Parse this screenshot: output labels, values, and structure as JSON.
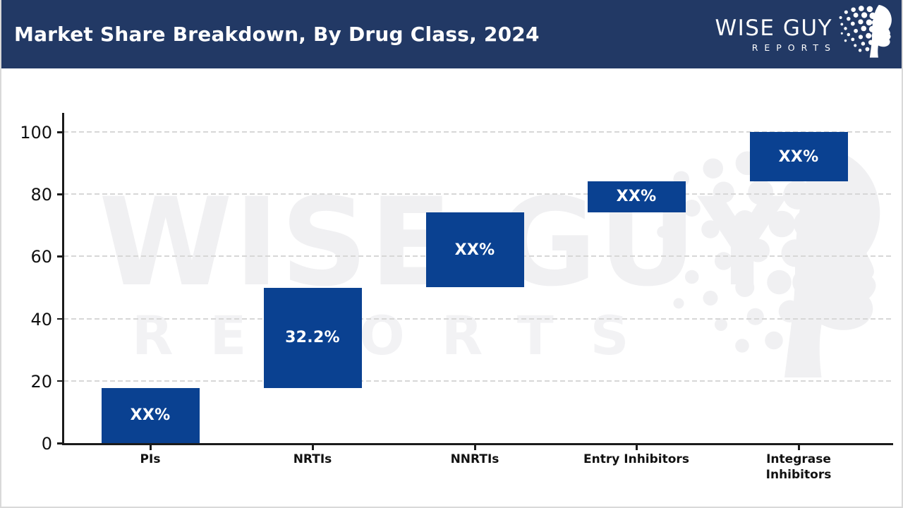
{
  "header": {
    "title": "Market Share Breakdown, By Drug Class, 2024",
    "logo": {
      "wordmark": "WISE GUY",
      "subtext": "REPORTS"
    }
  },
  "watermark": {
    "wordmark": "WISE GUY",
    "subtext": "REPORTS"
  },
  "chart_data": {
    "type": "bar",
    "subtype": "floating-waterfall",
    "title": "Market Share Breakdown, By Drug Class, 2024",
    "categories": [
      "PIs",
      "NRTIs",
      "NNRTIs",
      "Entry Inhibitors",
      "Integrase\nInhibitors"
    ],
    "segments": [
      {
        "category": "PIs",
        "start": 0,
        "end": 17.8,
        "value_label": "XX%"
      },
      {
        "category": "NRTIs",
        "start": 17.8,
        "end": 50.0,
        "value": 32.2,
        "value_label": "32.2%"
      },
      {
        "category": "NNRTIs",
        "start": 50.0,
        "end": 74.2,
        "value_label": "XX%"
      },
      {
        "category": "Entry Inhibitors",
        "start": 74.2,
        "end": 84.1,
        "value_label": "XX%"
      },
      {
        "category": "Integrase Inhibitors",
        "start": 84.1,
        "end": 100.0,
        "value_label": "XX%"
      }
    ],
    "yticks": [
      0,
      20,
      40,
      60,
      80,
      100
    ],
    "ylim": [
      0,
      105
    ],
    "xlabel": "",
    "ylabel": "",
    "grid": "horizontal-dashed",
    "legend": "none",
    "colors": {
      "bar": "#0A4191",
      "value_label": "#FFFFFF",
      "header_background": "#223965",
      "axis": "#1B1B1B",
      "gridline": "#D7D7D7",
      "watermark": "#F0F0F2"
    }
  }
}
